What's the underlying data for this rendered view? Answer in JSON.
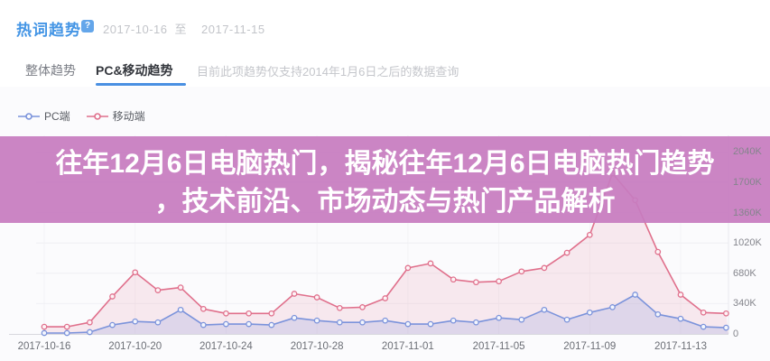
{
  "header": {
    "title": "热词趋势",
    "help_glyph": "?",
    "date_start": "2017-10-16",
    "date_separator": "至",
    "date_end": "2017-11-15"
  },
  "tabs": [
    {
      "label": "整体趋势",
      "active": false
    },
    {
      "label": "PC&移动趋势",
      "active": true
    }
  ],
  "tabs_note": "目前此项趋势仅支持2014年1月6日之后的数据查询",
  "overlay_title": {
    "line1": "往年12月6日电脑热门，揭秘往年12月6日电脑热门趋势",
    "line2": "，技术前沿、市场动态与热门产品解析",
    "background_color": "#c77cc0",
    "text_color": "#ffffff"
  },
  "legend": [
    {
      "label": "PC端",
      "color": "#7b93db"
    },
    {
      "label": "移动端",
      "color": "#e0708c"
    }
  ],
  "colors": {
    "accent_blue": "#4a90e2",
    "title_blue": "#4495e5",
    "pc_line": "#7b93db",
    "mobile_line": "#e0708c",
    "panel_bg": "#fbfbfd"
  },
  "chart_data": {
    "type": "line",
    "title": "",
    "xlabel": "",
    "ylabel": "",
    "unit": "K",
    "x": [
      "2017-10-16",
      "2017-10-17",
      "2017-10-18",
      "2017-10-19",
      "2017-10-20",
      "2017-10-21",
      "2017-10-22",
      "2017-10-23",
      "2017-10-24",
      "2017-10-25",
      "2017-10-26",
      "2017-10-27",
      "2017-10-28",
      "2017-10-29",
      "2017-10-30",
      "2017-10-31",
      "2017-11-01",
      "2017-11-02",
      "2017-11-03",
      "2017-11-04",
      "2017-11-05",
      "2017-11-06",
      "2017-11-07",
      "2017-11-08",
      "2017-11-09",
      "2017-11-10",
      "2017-11-11",
      "2017-11-12",
      "2017-11-13",
      "2017-11-14",
      "2017-11-15"
    ],
    "series": [
      {
        "name": "PC端",
        "color": "#7b93db",
        "values": [
          10,
          10,
          20,
          100,
          140,
          130,
          270,
          100,
          110,
          110,
          100,
          180,
          150,
          130,
          130,
          150,
          110,
          110,
          150,
          130,
          180,
          160,
          270,
          160,
          240,
          300,
          440,
          220,
          170,
          80,
          70
        ]
      },
      {
        "name": "移动端",
        "color": "#e0708c",
        "values": [
          80,
          80,
          130,
          420,
          690,
          490,
          520,
          280,
          230,
          230,
          230,
          450,
          410,
          290,
          300,
          400,
          740,
          790,
          610,
          580,
          590,
          700,
          740,
          910,
          1110,
          1800,
          1500,
          920,
          440,
          240,
          230
        ]
      }
    ],
    "ytick_values": [
      0,
      340,
      680,
      1020,
      1360,
      1700,
      2040
    ],
    "ytick_labels": [
      "0",
      "340K",
      "680K",
      "1020K",
      "1360K",
      "1700K",
      "2040K"
    ],
    "xtick_labels": [
      "2017-10-16",
      "2017-10-20",
      "2017-10-24",
      "2017-10-28",
      "2017-11-01",
      "2017-11-05",
      "2017-11-09",
      "2017-11-13"
    ],
    "ylim": [
      0,
      2220
    ],
    "grid": true,
    "area_fill": true,
    "legend_position": "top-left",
    "note": "values in thousands (K); peak region 11-10/11-11 partially hidden behind overlay banner"
  }
}
